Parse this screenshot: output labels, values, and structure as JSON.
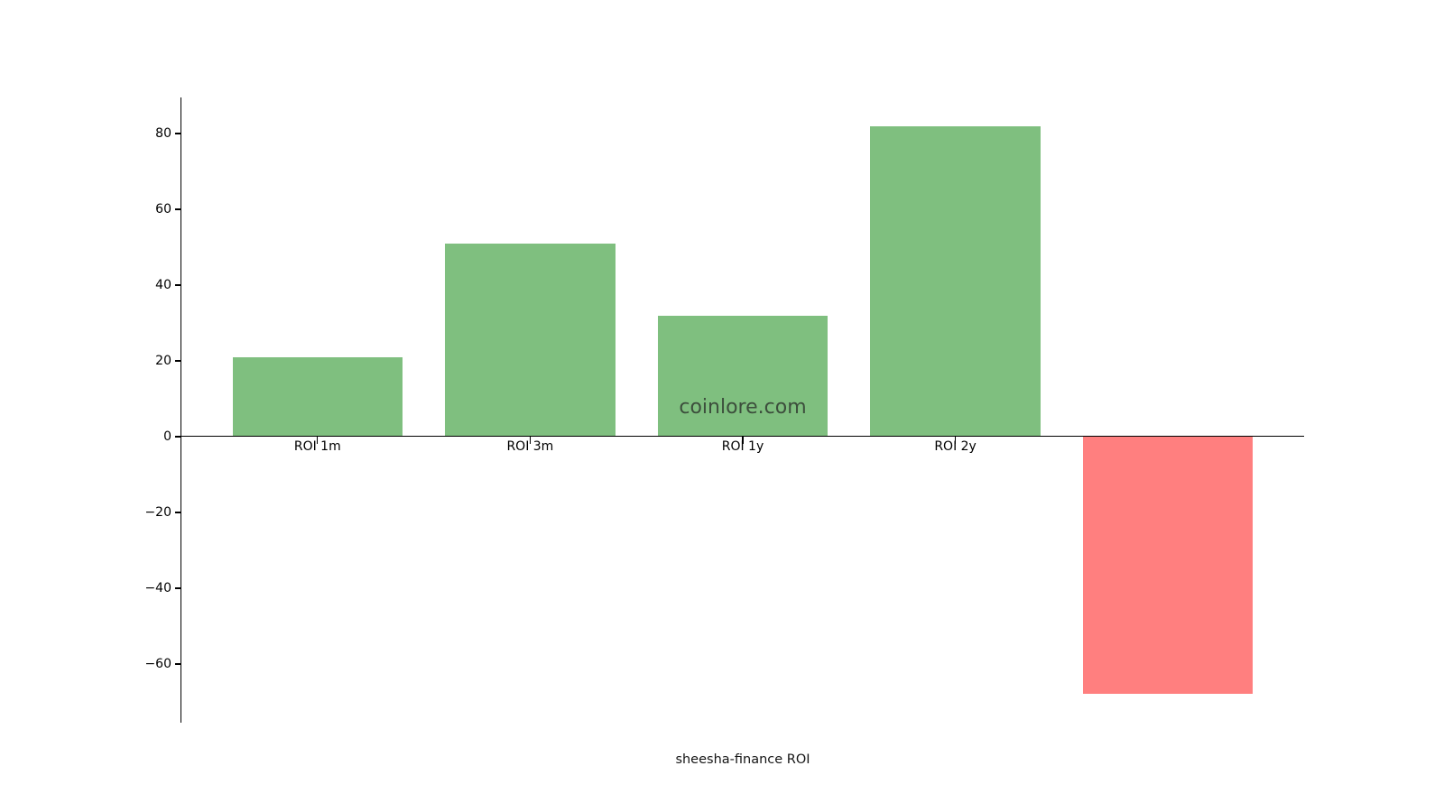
{
  "chart_data": {
    "type": "bar",
    "title": "sheesha-finance ROI",
    "watermark": "coinlore.com",
    "categories": [
      "ROI 1m",
      "ROI 3m",
      "ROI 1y",
      "ROI 2y",
      ""
    ],
    "values": [
      21,
      51,
      32,
      82,
      -68
    ],
    "bar_colors": [
      "#7fbf7f",
      "#7fbf7f",
      "#7fbf7f",
      "#7fbf7f",
      "#ff7f7f"
    ],
    "yticks": [
      80,
      60,
      40,
      20,
      0,
      -20,
      -40,
      -60
    ],
    "ytick_labels": [
      "80",
      "60",
      "40",
      "20",
      "0",
      "−20",
      "−40",
      "−60"
    ],
    "ylim": [
      -75.5,
      89.5
    ],
    "xlabel": "",
    "ylabel": "",
    "grid": false,
    "legend": null,
    "layout_hints": {
      "spines_visible": [
        "left",
        "bottom"
      ],
      "x_spine_at_zero": true,
      "title_position": "bottom-center",
      "watermark_position": "plot-center"
    },
    "colors": {
      "positive": "#7fbf7f",
      "negative": "#ff7f7f",
      "axis": "#000000",
      "tick_text": "#000000",
      "title_text": "#151515",
      "watermark_text": "rgba(35,35,35,0.72)",
      "background": "#ffffff"
    }
  }
}
